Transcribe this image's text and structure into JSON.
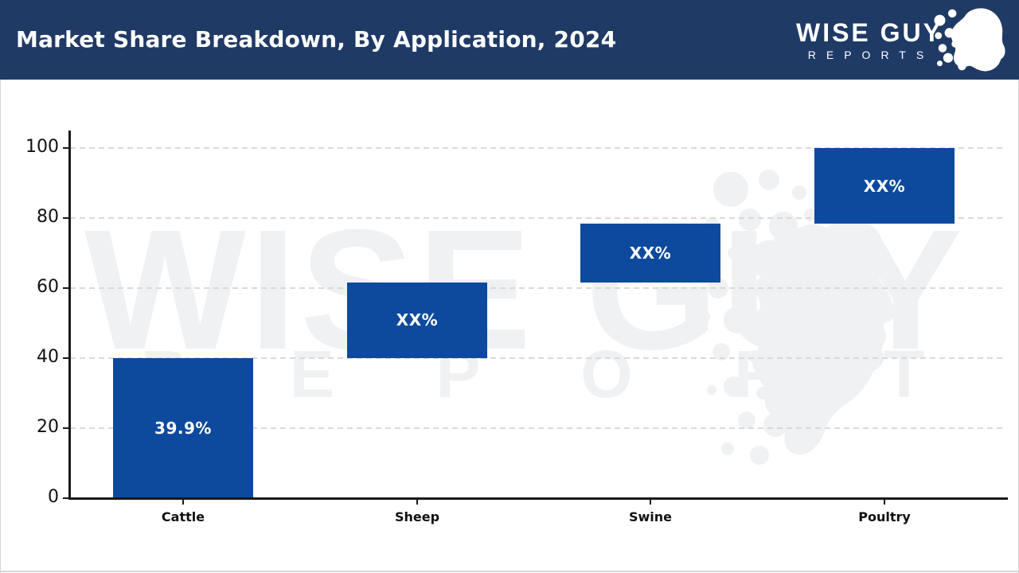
{
  "header": {
    "title": "Market Share Breakdown, By Application, 2024",
    "logo": {
      "line1": "WISE GUY",
      "line2": "REPORTS"
    }
  },
  "watermark": {
    "line1": "WISE GUY",
    "line2": "R E P O R T S"
  },
  "colors": {
    "header_bg": "#203a66",
    "bar_blue": "#0d4a9e",
    "gridline": "#d9d9d9",
    "watermark_gray": "#f0f1f3"
  },
  "chart_data": {
    "type": "bar",
    "variant": "waterfall-stacked",
    "title": "Market Share Breakdown, By Application, 2024",
    "categories": [
      "Cattle",
      "Sheep",
      "Swine",
      "Poultry"
    ],
    "segments": [
      {
        "category": "Cattle",
        "start": 0,
        "end": 39.9,
        "label": "39.9%"
      },
      {
        "category": "Sheep",
        "start": 39.9,
        "end": 61.7,
        "label": "XX%"
      },
      {
        "category": "Swine",
        "start": 61.7,
        "end": 78.4,
        "label": "XX%"
      },
      {
        "category": "Poultry",
        "start": 78.4,
        "end": 100,
        "label": "XX%"
      }
    ],
    "ylim": [
      0,
      105
    ],
    "yticks": [
      0,
      20,
      40,
      60,
      80,
      100
    ],
    "xlabel": "",
    "ylabel": "",
    "grid": "dashed-horizontal",
    "legend": "none",
    "bar_color": "#0d4a9e",
    "bar_label_color": "#ffffff"
  }
}
